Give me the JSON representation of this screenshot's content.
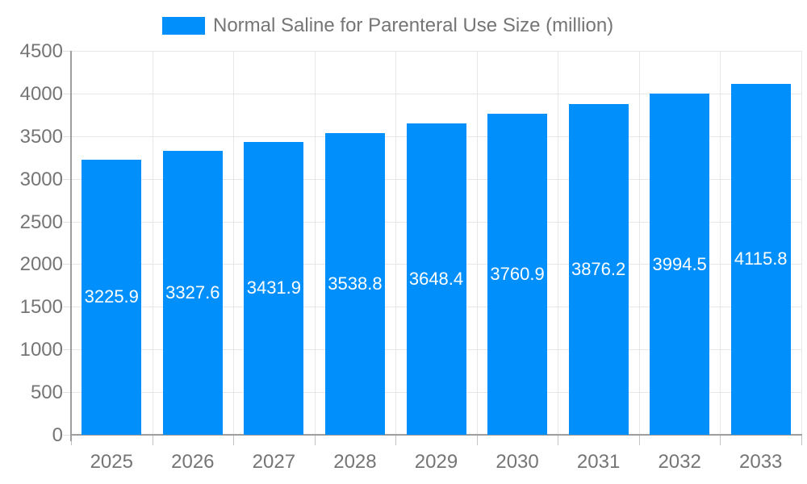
{
  "legend": {
    "label": "Normal Saline for Parenteral Use Size (million)"
  },
  "colors": {
    "bar": "#008ffb",
    "axis_text": "#757575",
    "gridline": "#e6e6e6",
    "axis_line": "#9e9e9e",
    "bar_label_text": "#ffffff",
    "background": "#ffffff"
  },
  "chart_data": {
    "type": "bar",
    "title": "Normal Saline for Parenteral Use Size (million)",
    "series_name": "Normal Saline for Parenteral Use Size (million)",
    "categories": [
      "2025",
      "2026",
      "2027",
      "2028",
      "2029",
      "2030",
      "2031",
      "2032",
      "2033"
    ],
    "values": [
      3225.9,
      3327.6,
      3431.9,
      3538.8,
      3648.4,
      3760.9,
      3876.2,
      3994.5,
      4115.8
    ],
    "data_labels": [
      "3225.9",
      "3327.6",
      "3431.9",
      "3538.8",
      "3648.4",
      "3760.9",
      "3876.2",
      "3994.5",
      "4115.8"
    ],
    "xlabel": "",
    "ylabel": "",
    "ylim": [
      0,
      4500
    ],
    "yticks": [
      0,
      500,
      1000,
      1500,
      2000,
      2500,
      3000,
      3500,
      4000,
      4500
    ],
    "grid": true,
    "legend_position": "top",
    "data_label_position": "middle-of-bar"
  }
}
